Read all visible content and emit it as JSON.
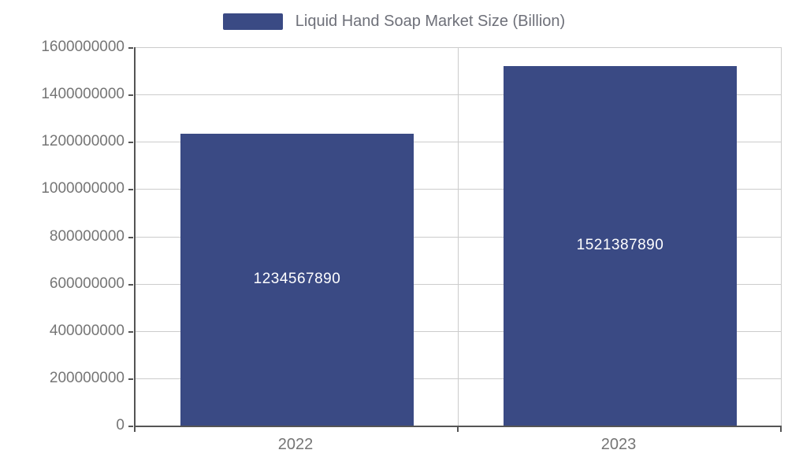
{
  "chart_data": {
    "type": "bar",
    "title": "Liquid Hand Soap Market Size (Billion)",
    "categories": [
      "2022",
      "2023"
    ],
    "values": [
      1234567890,
      1521387890
    ],
    "bar_labels": [
      "1234567890",
      "1521387890"
    ],
    "xlabel": "",
    "ylabel": "",
    "ylim": [
      0,
      1600000000
    ],
    "ytick_step": 200000000,
    "ytick_labels": [
      "0",
      "200000000",
      "400000000",
      "600000000",
      "800000000",
      "1000000000",
      "1200000000",
      "1400000000",
      "1600000000"
    ],
    "grid": true,
    "legend_position": "top-center",
    "legend_items": [
      {
        "label": "Liquid Hand Soap Market Size (Billion)",
        "color": "#3A4A84"
      }
    ],
    "colors": {
      "bar": "#3A4A84",
      "bar_value_text": "#ffffff",
      "axis_text": "#757575",
      "title_text": "#6E7079",
      "gridline": "#cccccc",
      "axis_line": "#555555"
    }
  }
}
